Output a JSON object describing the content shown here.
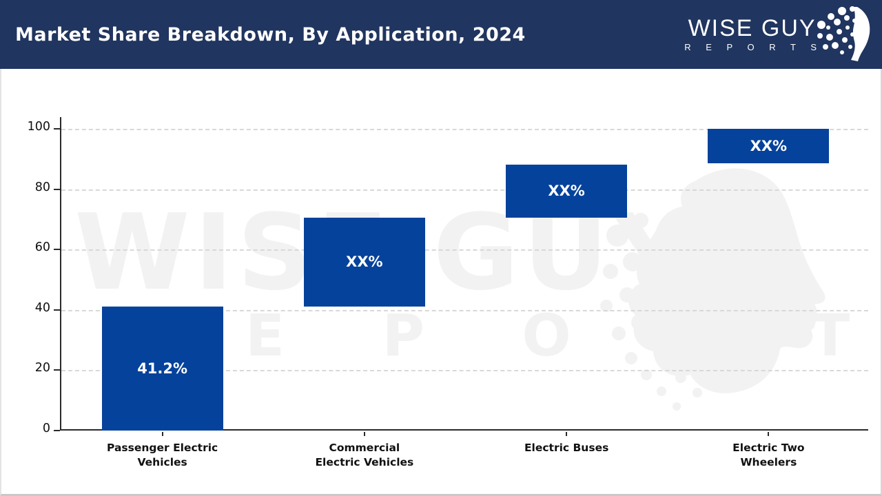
{
  "header": {
    "title": "Market Share Breakdown, By Application, 2024",
    "logo": {
      "wordmark": "WISE GUY",
      "subtitle": "R E P O R T S"
    }
  },
  "watermark": {
    "line1": "WISE GUY",
    "line2": "R E P O R T S"
  },
  "colors": {
    "header_bg": "#20355f",
    "bar": "#05429b",
    "bar_label": "#ffffff",
    "grid": "#d8d8d8",
    "axis": "#2a2a2a",
    "tick_label": "#111111",
    "watermark": "#f2f2f2",
    "page_bg": "#ffffff"
  },
  "chart_data": {
    "type": "bar",
    "subtype": "waterfall",
    "title": "Market Share Breakdown, By Application, 2024",
    "categories": [
      [
        "Passenger Electric",
        "Vehicles"
      ],
      [
        "Commercial",
        "Electric Vehicles"
      ],
      [
        "Electric Buses"
      ],
      [
        "Electric Two",
        "Wheelers"
      ]
    ],
    "segments": [
      {
        "category": "Passenger Electric Vehicles",
        "start": 0,
        "end": 41.2,
        "label": "41.2%"
      },
      {
        "category": "Commercial Electric Vehicles",
        "start": 41.2,
        "end": 70.5,
        "label": "XX%"
      },
      {
        "category": "Electric Buses",
        "start": 70.5,
        "end": 88.2,
        "label": "XX%"
      },
      {
        "category": "Electric Two Wheelers",
        "start": 88.5,
        "end": 100,
        "label": "XX%"
      }
    ],
    "ylim": [
      0,
      100
    ],
    "yticks": [
      0,
      20,
      40,
      60,
      80,
      100
    ],
    "xlabel": "",
    "ylabel": "",
    "grid": "horizontal-dashed",
    "legend": "none"
  }
}
